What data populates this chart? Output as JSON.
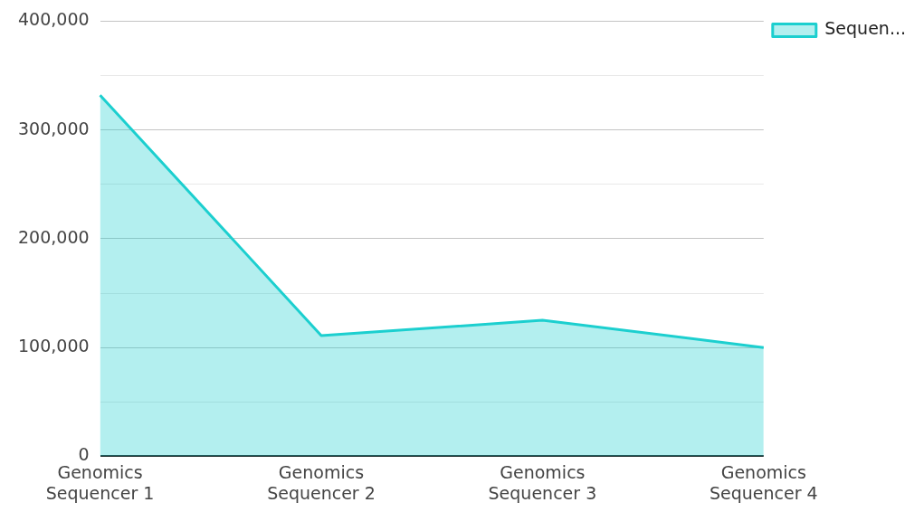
{
  "chart_data": {
    "type": "area",
    "categories": [
      "Genomics Sequencer 1",
      "Genomics Sequencer 2",
      "Genomics Sequencer 3",
      "Genomics Sequencer 4"
    ],
    "series": [
      {
        "name": "Sequen...",
        "color": "#1ccfcf",
        "values": [
          332000,
          111000,
          125000,
          100000
        ]
      }
    ],
    "ylim": [
      0,
      400000
    ],
    "yticks": [
      0,
      {
        "value": 50000,
        "label": null
      },
      {
        "value": 100000,
        "label": "100,000"
      },
      {
        "value": 150000,
        "label": null
      },
      {
        "value": 200000,
        "label": "200,000"
      },
      {
        "value": 250000,
        "label": null
      },
      {
        "value": 300000,
        "label": "300,000"
      },
      {
        "value": 350000,
        "label": null
      },
      {
        "value": 400000,
        "label": "400,000"
      }
    ],
    "grid": "y",
    "legend": "top right"
  }
}
